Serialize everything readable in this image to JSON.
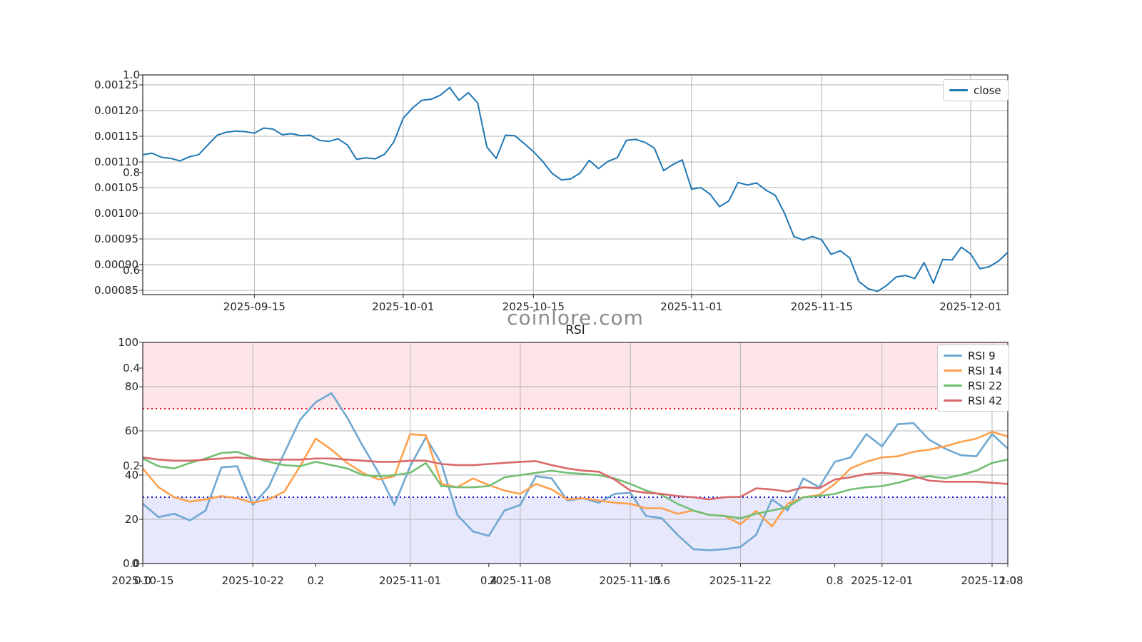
{
  "watermark": "coinlore.com",
  "colors": {
    "close_line": "#1f77b4",
    "rsi9_line": "#6fa8d2",
    "rsi14_line": "#ffa04d",
    "rsi22_line": "#72bf72",
    "rsi42_line": "#d9686a",
    "grid": "#b3b3b3",
    "frame": "#2b2b2b",
    "overbought_band": "rgba(244,67,92,0.14)",
    "oversold_band": "rgba(75,75,230,0.13)",
    "overbought_line": "#e8112d",
    "oversold_line": "#1414cc",
    "watermark_gray": "#8c8c8c"
  },
  "price_chart": {
    "legend": [
      {
        "label": "close",
        "color": "#1f77b4"
      }
    ],
    "y_tick_labels": [
      "0.00125",
      "0.00120",
      "0.00115",
      "0.00110",
      "0.00105",
      "0.00100",
      "0.00095",
      "0.00090",
      "0.00085"
    ],
    "x_tick_labels": [
      "2025-09-15",
      "2025-10-01",
      "2025-10-15",
      "2025-11-01",
      "2025-11-15",
      "2025-12-01"
    ]
  },
  "rsi_chart": {
    "title": "RSI",
    "legend": [
      {
        "label": "RSI 9",
        "color": "#6fa8d2"
      },
      {
        "label": "RSI 14",
        "color": "#ffa04d"
      },
      {
        "label": "RSI 22",
        "color": "#72bf72"
      },
      {
        "label": "RSI 42",
        "color": "#d9686a"
      }
    ],
    "y_tick_labels": [
      "100",
      "80",
      "60",
      "40",
      "20",
      "0"
    ],
    "x_tick_labels": [
      "2025-10-15",
      "2025-10-22",
      "2025-11-01",
      "2025-11-08",
      "2025-11-15",
      "2025-11-22",
      "2025-12-01",
      "2025-12-08"
    ],
    "overbought_level": 70,
    "oversold_level": 30
  },
  "secondary_axis": {
    "y_tick_labels": [
      "1.0",
      "0.8",
      "0.6",
      "0.4",
      "0.2",
      "0.0"
    ],
    "x_tick_labels": [
      "0.0",
      "0.2",
      "0.4",
      "0.6",
      "0.8",
      "1.0"
    ]
  },
  "chart_data": [
    {
      "type": "line",
      "title": "",
      "ylabel": "",
      "xlabel": "",
      "ylim": [
        0.00085,
        0.00125
      ],
      "y_ticks": [
        0.00125,
        0.0012,
        0.00115,
        0.0011,
        0.00105,
        0.001,
        0.00095,
        0.0009,
        0.00085
      ],
      "x_ticks": [
        "2025-09-15",
        "2025-10-01",
        "2025-10-15",
        "2025-11-01",
        "2025-11-15",
        "2025-12-01"
      ],
      "grid": true,
      "legend_position": "upper right",
      "series": [
        {
          "name": "close",
          "start_date": "2025-09-03",
          "interval_days": 1,
          "values": [
            0.001114,
            0.001117,
            0.001109,
            0.001107,
            0.001102,
            0.00111,
            0.001114,
            0.001133,
            0.001152,
            0.001158,
            0.00116,
            0.001159,
            0.001156,
            0.001166,
            0.001164,
            0.001153,
            0.001155,
            0.001151,
            0.001152,
            0.001142,
            0.00114,
            0.001145,
            0.001133,
            0.001105,
            0.001108,
            0.001106,
            0.001115,
            0.001139,
            0.001185,
            0.001205,
            0.00122,
            0.001222,
            0.00123,
            0.001245,
            0.00122,
            0.001235,
            0.001215,
            0.001129,
            0.001107,
            0.001152,
            0.001151,
            0.001136,
            0.00112,
            0.001101,
            0.001078,
            0.001065,
            0.001067,
            0.001078,
            0.001103,
            0.001087,
            0.001101,
            0.001108,
            0.001142,
            0.001144,
            0.001138,
            0.001127,
            0.001083,
            0.001095,
            0.001104,
            0.001047,
            0.00105,
            0.001037,
            0.001013,
            0.001024,
            0.00106,
            0.001055,
            0.001059,
            0.001045,
            0.001035,
            0.001,
            0.000955,
            0.000948,
            0.000955,
            0.000948,
            0.00092,
            0.000927,
            0.000913,
            0.000867,
            0.000853,
            0.000848,
            0.00086,
            0.000876,
            0.000879,
            0.000873,
            0.000904,
            0.000864,
            0.00091,
            0.000909,
            0.000934,
            0.000921,
            0.000892,
            0.000896,
            0.000907,
            0.000924
          ]
        }
      ]
    },
    {
      "type": "line",
      "title": "RSI",
      "ylabel": "",
      "xlabel": "",
      "ylim": [
        0,
        100
      ],
      "y_ticks": [
        100,
        80,
        60,
        40,
        20,
        0
      ],
      "x_ticks": [
        "2025-10-15",
        "2025-10-22",
        "2025-11-01",
        "2025-11-08",
        "2025-11-15",
        "2025-11-22",
        "2025-12-01",
        "2025-12-08"
      ],
      "grid": true,
      "legend_position": "upper right",
      "hlines": [
        {
          "y": 70,
          "style": "dotted",
          "color": "#e8112d"
        },
        {
          "y": 30,
          "style": "dotted",
          "color": "#1414cc"
        }
      ],
      "bands": [
        {
          "from": 70,
          "to": 100,
          "color": "rgba(244,67,92,0.14)"
        },
        {
          "from": 0,
          "to": 30,
          "color": "rgba(75,75,230,0.13)"
        }
      ],
      "series": [
        {
          "name": "RSI 9",
          "start_date": "2025-10-15",
          "interval_days": 1,
          "values": [
            27,
            21,
            22.5,
            19.5,
            24,
            43.5,
            44,
            26.5,
            34.5,
            50,
            65,
            73,
            77,
            66,
            53,
            41,
            26.5,
            44,
            57,
            45,
            22,
            14.5,
            12.5,
            24,
            26.5,
            39.5,
            38.5,
            28.5,
            29.5,
            27.5,
            31.5,
            32,
            21.5,
            20.5,
            13,
            6.5,
            6,
            6.5,
            7.5,
            13,
            29,
            24,
            38.5,
            34.5,
            46,
            48,
            58.5,
            53,
            63,
            63.5,
            56,
            52,
            49,
            48.5,
            58.5,
            52
          ]
        },
        {
          "name": "RSI 14",
          "start_date": "2025-10-15",
          "interval_days": 1,
          "values": [
            43,
            34.5,
            30,
            28,
            29,
            30.5,
            29.5,
            27.5,
            29,
            32.5,
            44,
            56.5,
            51.5,
            45.5,
            41,
            38,
            39.5,
            58.5,
            58,
            36,
            34.5,
            38.5,
            35.5,
            33,
            31.5,
            36,
            33.5,
            29,
            29.5,
            28.5,
            27.5,
            27,
            25,
            25,
            22.5,
            24,
            22,
            21.5,
            17.8,
            23.8,
            16.8,
            27,
            30,
            31,
            36,
            43,
            46,
            48,
            48.5,
            50.5,
            51.5,
            53,
            55,
            56.5,
            59.5,
            57.5
          ]
        },
        {
          "name": "RSI 22",
          "start_date": "2025-10-15",
          "interval_days": 1,
          "values": [
            47.5,
            44,
            43,
            45.5,
            47.5,
            50,
            50.5,
            48,
            46,
            44.5,
            44,
            46,
            44.5,
            43,
            40,
            39.5,
            40,
            41,
            45.5,
            35,
            34.5,
            34.5,
            35,
            39,
            40,
            41,
            42,
            41,
            40.5,
            40,
            38.5,
            36,
            33,
            31,
            27,
            24,
            22,
            21.5,
            20.5,
            22.5,
            24,
            25.5,
            30,
            30.5,
            31.5,
            33.5,
            34.5,
            35,
            36.5,
            38.5,
            39.5,
            38.5,
            40,
            42,
            45.5,
            47
          ]
        },
        {
          "name": "RSI 42",
          "start_date": "2025-10-15",
          "interval_days": 1,
          "values": [
            48,
            47,
            46.5,
            46.5,
            47,
            47.5,
            48,
            47.5,
            47,
            47,
            47,
            47.5,
            47.5,
            47,
            46.5,
            46,
            46,
            46.5,
            46.5,
            45,
            44.5,
            44.5,
            45,
            45.5,
            46,
            46.3,
            44.5,
            43,
            42,
            41.5,
            38,
            33,
            32,
            31.5,
            30.5,
            30,
            29,
            30,
            30.2,
            34,
            33.5,
            32.5,
            34.5,
            34,
            38,
            39,
            40.5,
            41,
            40.5,
            39.5,
            37.5,
            37,
            37,
            37,
            36.5,
            36
          ]
        }
      ]
    }
  ]
}
